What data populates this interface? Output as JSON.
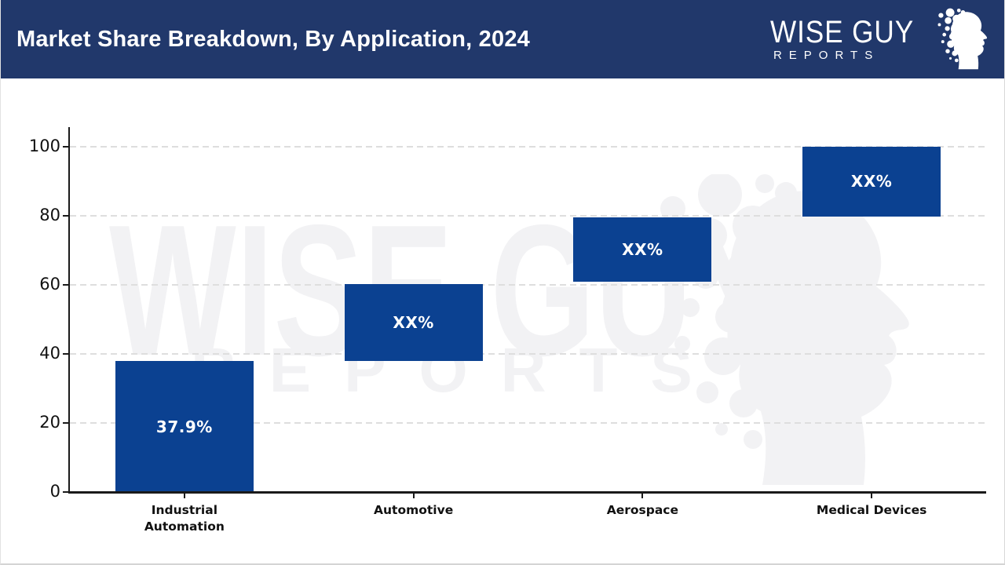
{
  "header": {
    "title": "Market Share Breakdown, By Application, 2024",
    "bg_color": "#21386b",
    "logo_line1": "WISE GUY",
    "logo_line2": "REPORTS"
  },
  "watermark": {
    "line1": "WISE GUY",
    "line2": "REPORTS"
  },
  "chart_data": {
    "type": "bar",
    "subtype": "waterfall",
    "title": "Market Share Breakdown, By Application, 2024",
    "categories": [
      "Industrial Automation",
      "Automotive",
      "Aerospace",
      "Medical Devices"
    ],
    "category_lines": [
      [
        "Industrial",
        "Automation"
      ],
      [
        "Automotive"
      ],
      [
        "Aerospace"
      ],
      [
        "Medical Devices"
      ]
    ],
    "segments": [
      {
        "category": "Industrial Automation",
        "start": 0,
        "end": 37.9,
        "value_label": "37.9%"
      },
      {
        "category": "Automotive",
        "start": 37.9,
        "end": 60.3,
        "value_label": "XX%"
      },
      {
        "category": "Aerospace",
        "start": 60.8,
        "end": 79.5,
        "value_label": "XX%"
      },
      {
        "category": "Medical Devices",
        "start": 79.8,
        "end": 100,
        "value_label": "XX%"
      }
    ],
    "ylim": [
      0,
      100
    ],
    "yticks": [
      0,
      20,
      40,
      60,
      80,
      100
    ],
    "grid": "horizontal-dashed",
    "legend": "none",
    "xlabel": "",
    "ylabel": "",
    "bar_color": "#0b4191",
    "bar_label_color": "#ffffff",
    "axis_color": "#1a1a1a",
    "grid_color": "#dedede",
    "watermark_color": "#f2f2f4"
  }
}
